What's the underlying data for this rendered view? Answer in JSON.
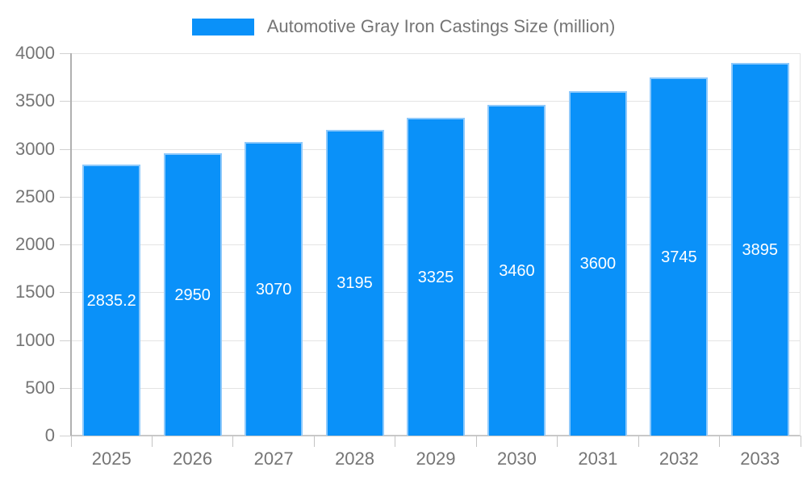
{
  "chart_data": {
    "type": "bar",
    "title": "Automotive Gray Iron Castings Size (million)",
    "categories": [
      "2025",
      "2026",
      "2027",
      "2028",
      "2029",
      "2030",
      "2031",
      "2032",
      "2033"
    ],
    "values": [
      2835.2,
      2950,
      3070,
      3195,
      3325,
      3460,
      3600,
      3745,
      3895
    ],
    "value_labels": [
      "2835.2",
      "2950",
      "3070",
      "3195",
      "3325",
      "3460",
      "3600",
      "3745",
      "3895"
    ],
    "xlabel": "",
    "ylabel": "",
    "ylim": [
      0,
      4000
    ],
    "yticks": [
      0,
      500,
      1000,
      1500,
      2000,
      2500,
      3000,
      3500,
      4000
    ],
    "grid": true,
    "legend_position": "top",
    "colors": {
      "bar_fill": "#0a91f9",
      "bar_border": "#8ec9fb",
      "bar_value_text": "#ffffff",
      "axis_text": "#757575",
      "gridline": "#e4e4e4",
      "baseline": "#c8c8c8",
      "y_axis_line": "#b0b0b0",
      "tick_mark": "#c4c4c4"
    }
  }
}
